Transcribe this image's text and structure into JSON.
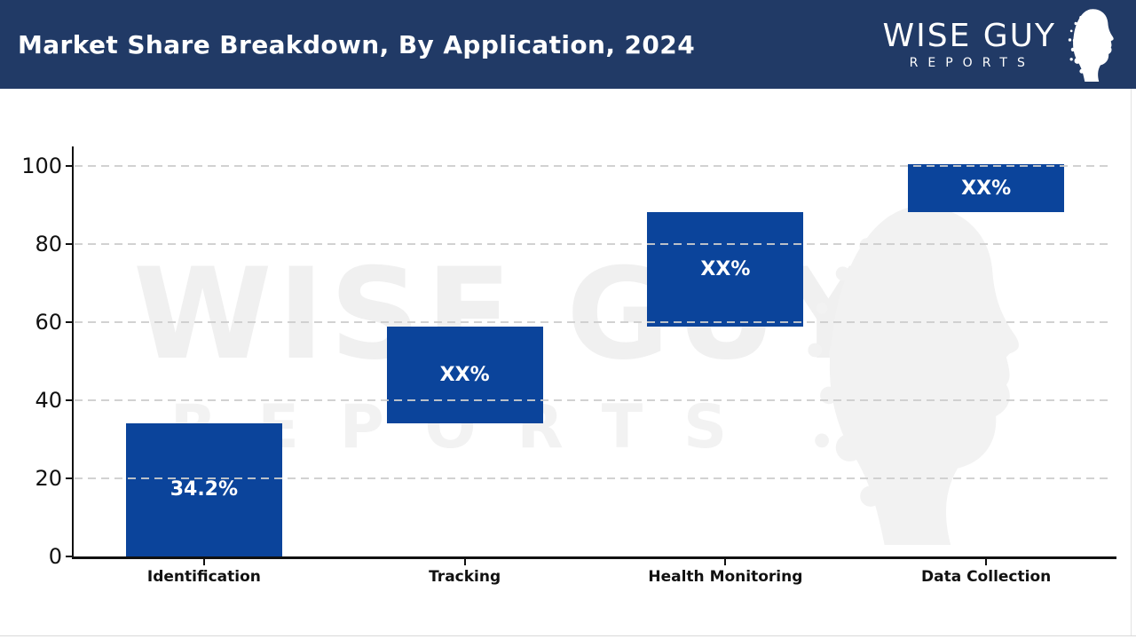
{
  "header": {
    "title": "Market Share Breakdown, By Application, 2024",
    "bg_color": "#213a66",
    "logo": {
      "line1": "WISE GUY",
      "line2": "REPORTS"
    }
  },
  "watermark": {
    "line1": "WISE GUY",
    "line2": "REPORTS"
  },
  "chart_data": {
    "type": "bar",
    "variant": "waterfall",
    "title": "Market Share Breakdown, By Application, 2024",
    "categories": [
      "Identification",
      "Tracking",
      "Health Monitoring",
      "Data Collection"
    ],
    "segments": [
      {
        "category": "Identification",
        "start": 0,
        "end": 34.2,
        "value": 34.2,
        "label": "34.2%"
      },
      {
        "category": "Tracking",
        "start": 34.2,
        "end": 58.8,
        "value": 24.6,
        "label": "XX%"
      },
      {
        "category": "Health Monitoring",
        "start": 58.8,
        "end": 88.2,
        "value": 29.4,
        "label": "XX%"
      },
      {
        "category": "Data Collection",
        "start": 88.2,
        "end": 100.4,
        "value": 12.2,
        "label": "XX%"
      }
    ],
    "yticks": [
      0,
      20,
      40,
      60,
      80,
      100
    ],
    "ylim": [
      0,
      105
    ],
    "xlabel": "",
    "ylabel": "",
    "grid": "horizontal-dashed",
    "legend": "none",
    "bar_color": "#0b449b",
    "bar_label_color": "#ffffff",
    "axis_color": "#111111",
    "gridline_color": "#d9d9d9"
  }
}
